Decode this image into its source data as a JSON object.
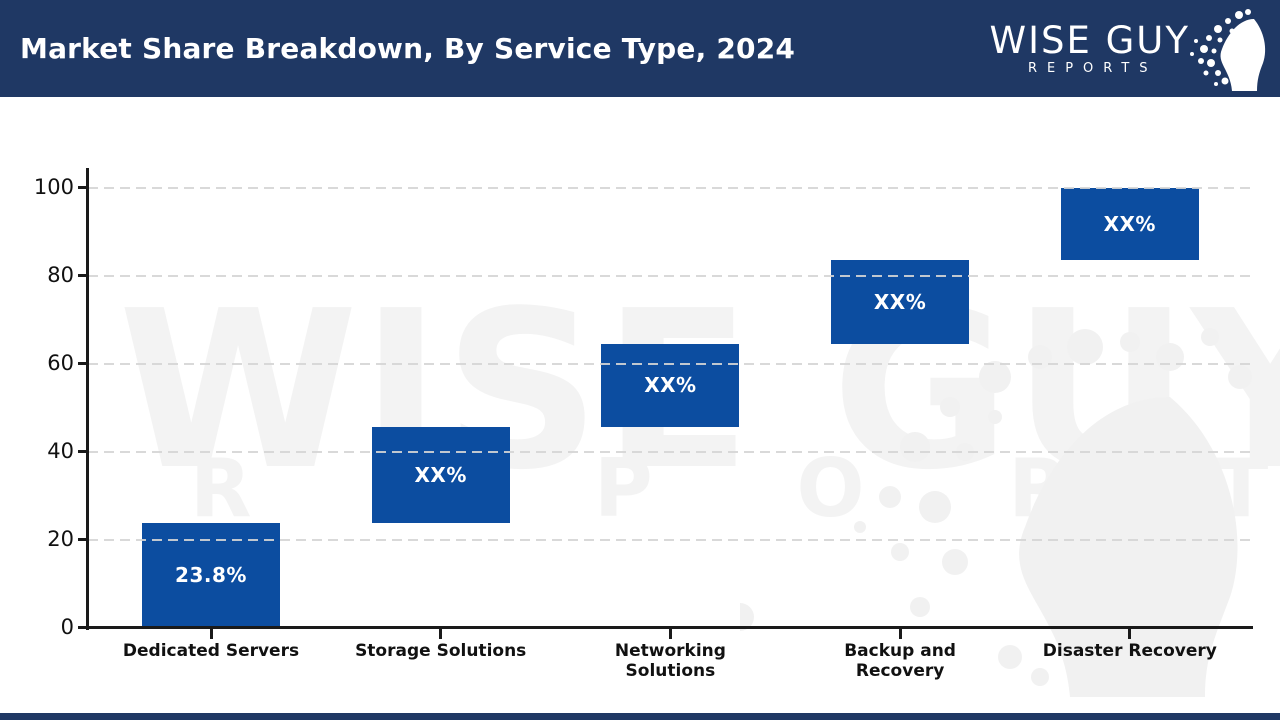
{
  "header": {
    "title": "Market Share Breakdown, By Service Type, 2024",
    "logo": {
      "wordmark": "WISE GUY",
      "subtext": "REPORTS"
    }
  },
  "watermark": {
    "line1": "WISE GUY",
    "line2": "REPORTS"
  },
  "colors": {
    "header_bg": "#1f3864",
    "bar_fill": "#0c4da0",
    "bar_label": "#ffffff",
    "gridline": "#d5d5d5",
    "axis": "#1a1a1a",
    "watermark": "#f3f3f3"
  },
  "chart_data": {
    "type": "bar",
    "subtype": "waterfall",
    "title": "Market Share Breakdown, By Service Type, 2024",
    "xlabel": "",
    "ylabel": "",
    "ylim": [
      0,
      105
    ],
    "yticks": [
      0,
      20,
      40,
      60,
      80,
      100
    ],
    "grid": "horizontal-dashed",
    "legend": "none",
    "categories": [
      "Dedicated Servers",
      "Storage Solutions",
      "Networking\nSolutions",
      "Backup and\nRecovery",
      "Disaster Recovery"
    ],
    "segments": [
      {
        "category": "Dedicated Servers",
        "start": 0,
        "end": 23.8,
        "label": "23.8%"
      },
      {
        "category": "Storage Solutions",
        "start": 23.8,
        "end": 45.6,
        "label": "XX%"
      },
      {
        "category": "Networking\nSolutions",
        "start": 45.6,
        "end": 64.4,
        "label": "XX%"
      },
      {
        "category": "Backup and\nRecovery",
        "start": 64.4,
        "end": 83.5,
        "label": "XX%"
      },
      {
        "category": "Disaster Recovery",
        "start": 83.5,
        "end": 100,
        "label": "XX%"
      }
    ]
  }
}
